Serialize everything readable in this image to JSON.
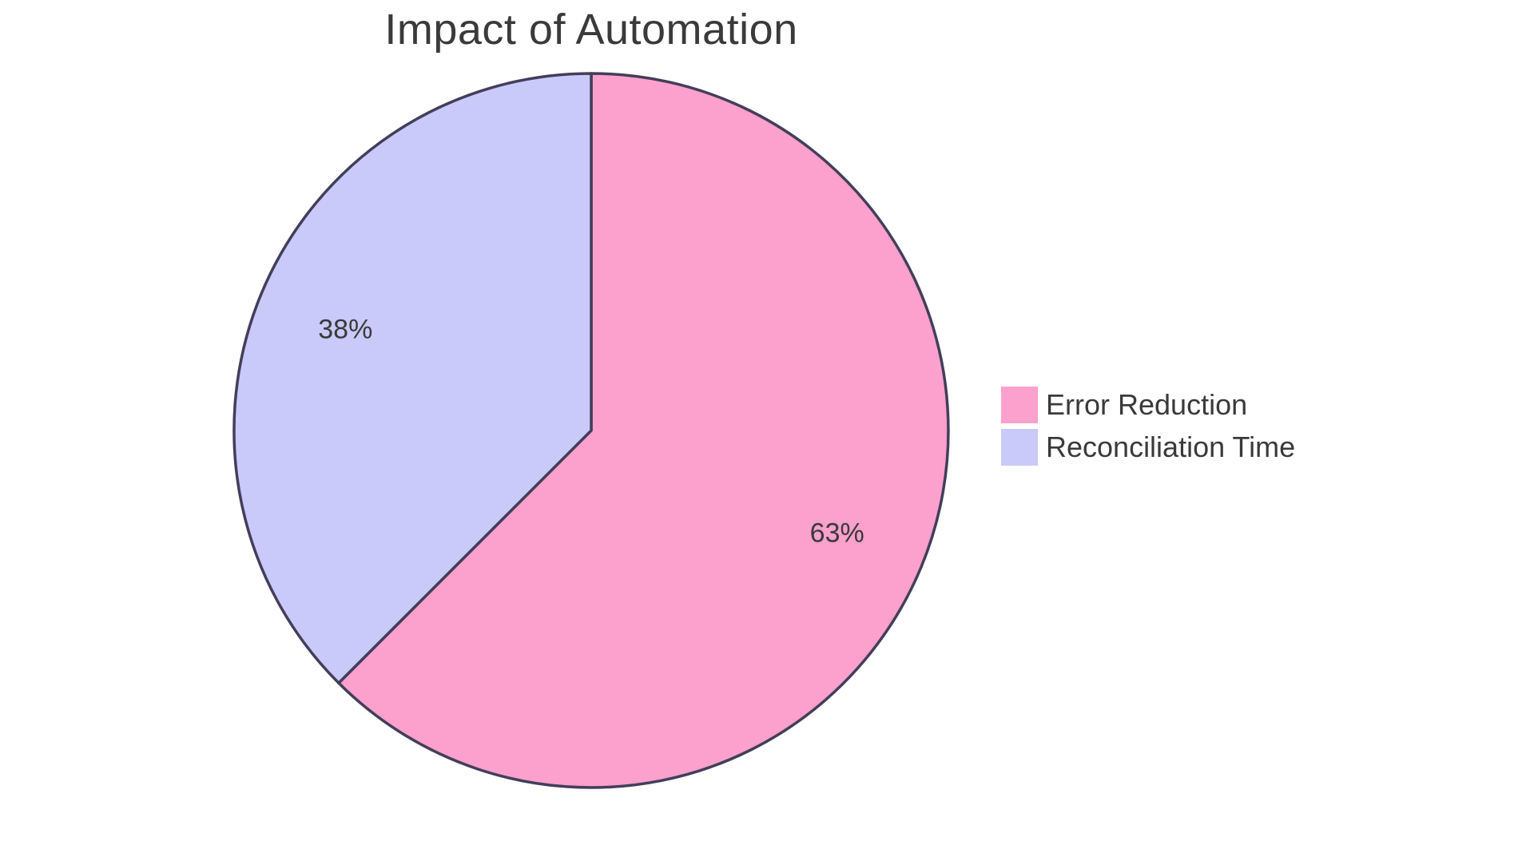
{
  "page": {
    "background_color": "#FFFFFF"
  },
  "chart_data": {
    "type": "pie",
    "title": "Impact of Automation",
    "slices": [
      {
        "label": "Error Reduction",
        "percent_label": "63%",
        "value": 62.5,
        "color": "#FCA0CD"
      },
      {
        "label": "Reconciliation Time",
        "percent_label": "38%",
        "value": 37.5,
        "color": "#C9C9FA"
      }
    ],
    "start_angle_deg": 0,
    "direction": "clockwise",
    "legend_position": "right",
    "outline_color": "#433E59",
    "outline_width": 3.5,
    "text_color": "#3A3A3A"
  }
}
